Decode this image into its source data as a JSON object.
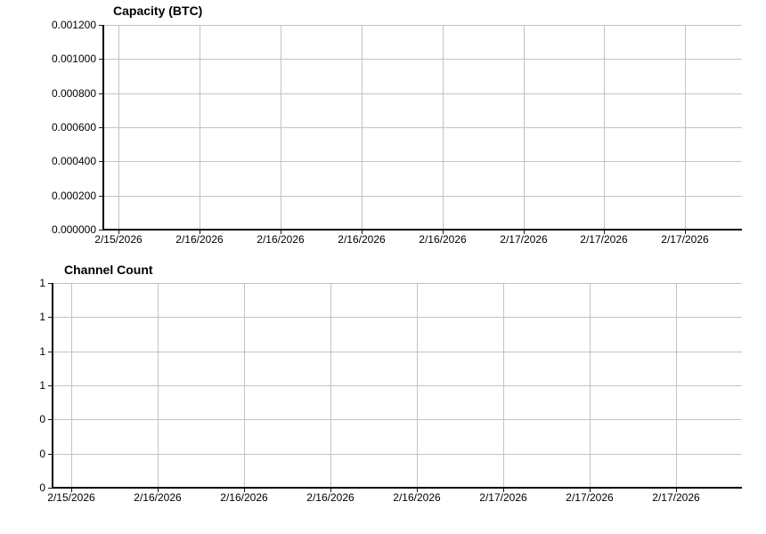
{
  "colors": {
    "background": "#ffffff",
    "gridline": "#c3c3c3",
    "axis": "#000000",
    "tick": "#1a1a1a",
    "text": "#000000"
  },
  "chart_data": [
    {
      "type": "line",
      "title": "Capacity (BTC)",
      "x_tick_labels": [
        "2/15/2026",
        "2/16/2026",
        "2/16/2026",
        "2/16/2026",
        "2/16/2026",
        "2/17/2026",
        "2/17/2026",
        "2/17/2026"
      ],
      "y_tick_labels_top_to_bottom": [
        "0.001200",
        "0.001000",
        "0.000800",
        "0.000600",
        "0.000400",
        "0.000200",
        "0.000000"
      ],
      "y_tick_values": [
        0.0,
        0.0002,
        0.0004,
        0.0006,
        0.0008,
        0.001,
        0.0012
      ],
      "ylim": [
        0.0,
        0.0012
      ],
      "grid": true,
      "legend": "none",
      "series": []
    },
    {
      "type": "line",
      "title": "Channel Count",
      "x_tick_labels": [
        "2/15/2026",
        "2/16/2026",
        "2/16/2026",
        "2/16/2026",
        "2/16/2026",
        "2/17/2026",
        "2/17/2026",
        "2/17/2026"
      ],
      "y_tick_labels_top_to_bottom": [
        "1",
        "1",
        "1",
        "1",
        "0",
        "0",
        "0"
      ],
      "ylim": [
        0,
        1
      ],
      "grid": true,
      "legend": "none",
      "series": []
    }
  ]
}
